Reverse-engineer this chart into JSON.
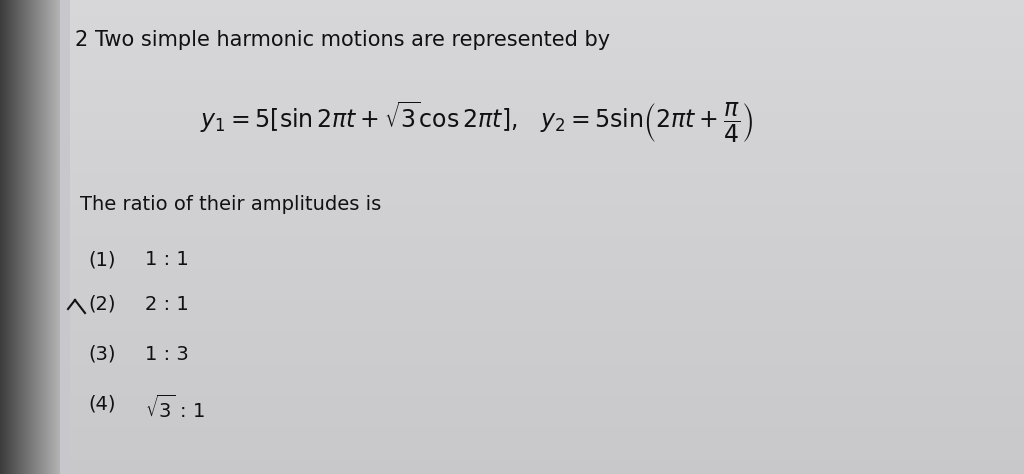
{
  "bg_color": "#c8c8cc",
  "page_color": "#d8d8dc",
  "spine_color": "#888888",
  "text_color": "#111111",
  "question_number": "2",
  "question_text": "Two simple harmonic motions are represented by",
  "sub_question": "The ratio of their amplitudes is",
  "options": [
    {
      "num": "(1)",
      "text": "1 : 1",
      "correct": false
    },
    {
      "num": "(2)",
      "text": "2 : 1",
      "correct": true
    },
    {
      "num": "(3)",
      "text": "1 : 3",
      "correct": false
    },
    {
      "num": "(4)",
      "text": "$\\sqrt{3}$ : 1",
      "correct": false
    }
  ],
  "figsize": [
    10.24,
    4.74
  ],
  "dpi": 100
}
